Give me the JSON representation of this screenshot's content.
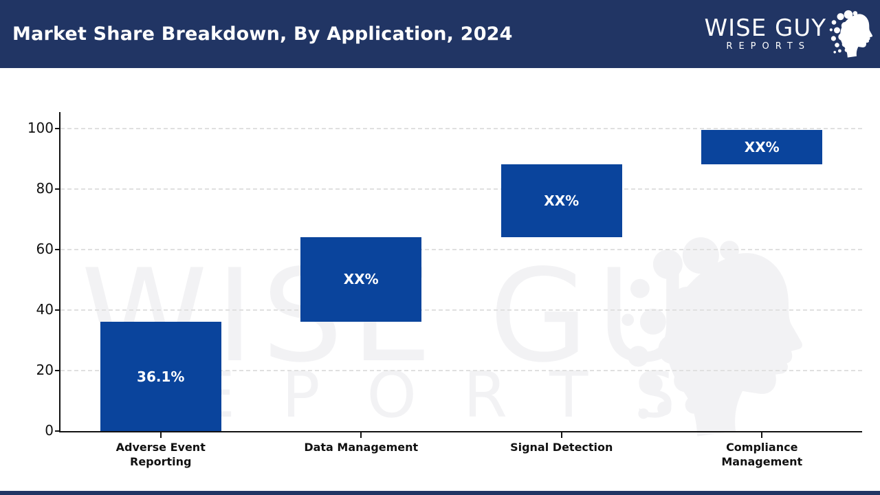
{
  "header": {
    "title": "Market Share Breakdown, By Application, 2024",
    "logo": {
      "line1": "WISE GUY",
      "line2": "REPORTS",
      "face_icon": "dotted-head-profile"
    }
  },
  "watermark": {
    "line1": "WISE GUY",
    "line2": "REPORTS",
    "face_icon": "dotted-head-profile"
  },
  "colors": {
    "header_bg": "#213564",
    "footer_bg": "#213564",
    "bar_blue": "#0a449c",
    "grid": "#e0e0e0",
    "axis": "#111111",
    "watermark": "#f2f2f4",
    "bar_label_text": "#ffffff",
    "title_text": "#ffffff"
  },
  "chart_data": {
    "type": "bar",
    "variant": "floating-waterfall",
    "title": "Market Share Breakdown, By Application, 2024",
    "xlabel": "",
    "ylabel": "",
    "ylim": [
      0,
      100
    ],
    "yticks": [
      0,
      20,
      40,
      60,
      80,
      100
    ],
    "grid": "horizontal-dashed",
    "legend": "none",
    "categories": [
      "Adverse Event Reporting",
      "Data Management",
      "Signal Detection",
      "Compliance Management"
    ],
    "segments": [
      {
        "category": "Adverse Event Reporting",
        "start": 0,
        "end": 36.1,
        "value": 36.1,
        "label": "36.1%"
      },
      {
        "category": "Data Management",
        "start": 36.1,
        "end": 64.2,
        "value": 28.1,
        "label": "XX%"
      },
      {
        "category": "Signal Detection",
        "start": 64.2,
        "end": 88.2,
        "value": 24.0,
        "label": "XX%"
      },
      {
        "category": "Compliance Management",
        "start": 88.2,
        "end": 99.5,
        "value": 11.3,
        "label": "XX%"
      }
    ]
  }
}
